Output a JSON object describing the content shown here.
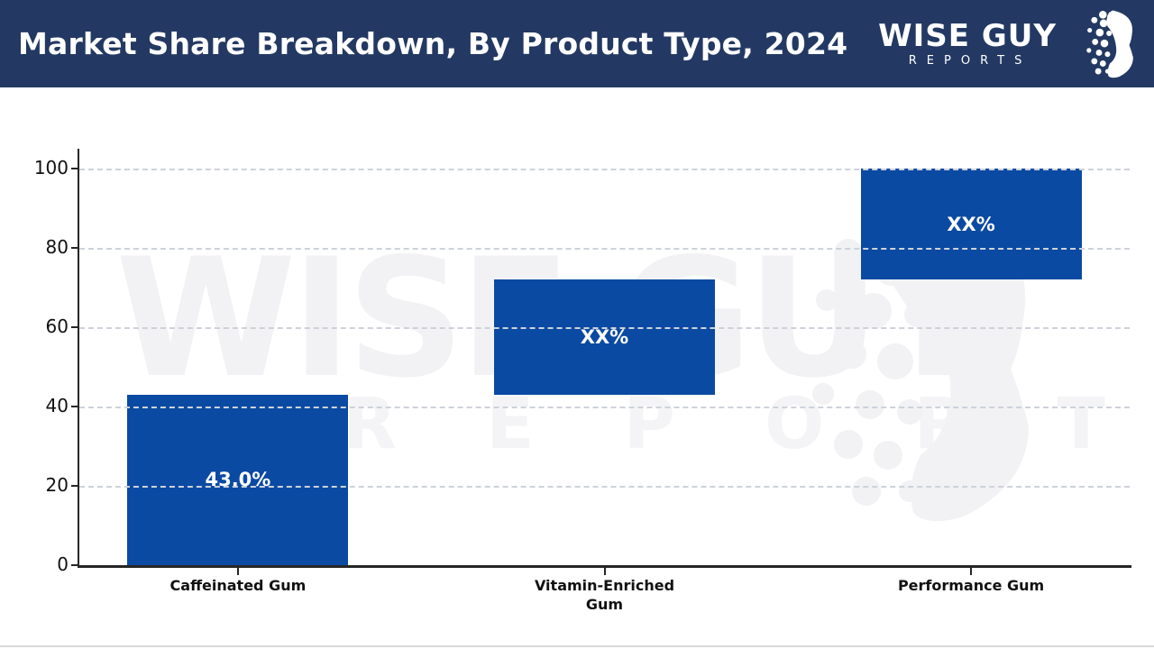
{
  "header": {
    "title": "Market Share Breakdown, By Product Type, 2024",
    "logo": {
      "line1": "WISE GUY",
      "line2": "REPORTS"
    }
  },
  "watermark": {
    "line1": "WISE GUY",
    "line2": "R E P O R T S"
  },
  "chart_data": {
    "type": "bar",
    "subtype": "floating-stacked-waterfall",
    "title": "Market Share Breakdown, By Product Type, 2024",
    "categories": [
      "Caffeinated Gum",
      "Vitamin-Enriched Gum",
      "Performance Gum"
    ],
    "series": [
      {
        "name": "Market Share (%)",
        "ranges": [
          {
            "base": 0,
            "top": 43
          },
          {
            "base": 43,
            "top": 72
          },
          {
            "base": 72,
            "top": 100
          }
        ],
        "labels": [
          "43.0%",
          "XX%",
          "XX%"
        ]
      }
    ],
    "xlabel": "",
    "ylabel": "",
    "ylim": [
      0,
      100
    ],
    "yticks": [
      0,
      20,
      40,
      60,
      80,
      100
    ],
    "grid": "horizontal-dashed",
    "legend": "none",
    "bar_color": "#0b4aa2",
    "bar_label_color": "#ffffff",
    "gridline_color": "#cdd2da",
    "axis_color": "#262626"
  },
  "colors": {
    "header_bg": "#233963",
    "header_text": "#ffffff",
    "watermark": "#f2f2f4",
    "page_bg": "#ffffff",
    "footer_line": "#d9d9d9"
  }
}
